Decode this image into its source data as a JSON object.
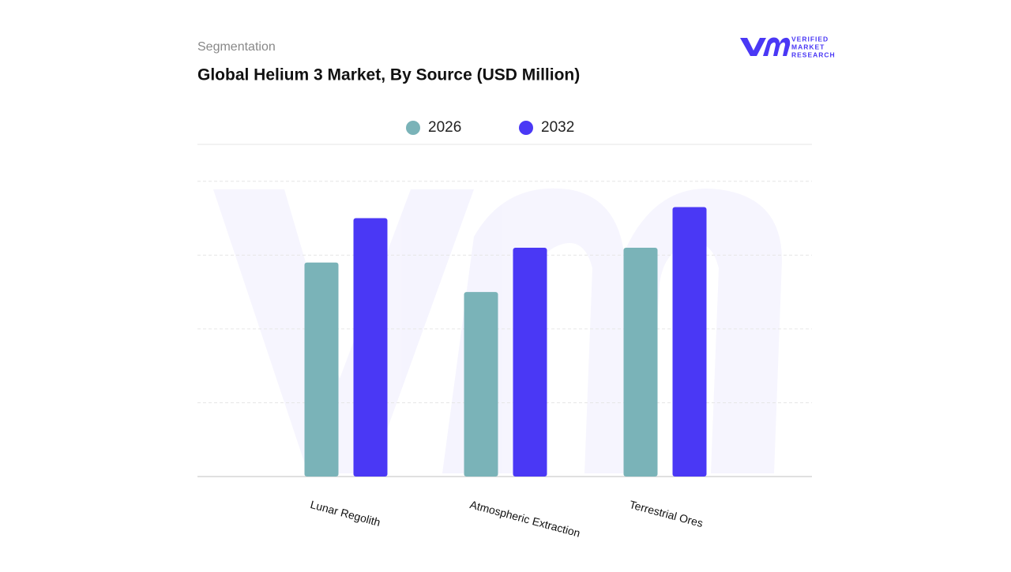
{
  "header": {
    "subtitle": "Segmentation",
    "logo": [
      "VERIFIED",
      "MARKET",
      "RESEARCH"
    ]
  },
  "chart_data": {
    "type": "bar",
    "title": "Global Helium 3 Market, By Source (USD Million)",
    "categories": [
      "Lunar Regolith",
      "Atmospheric Extraction",
      "Terrestrial Ores"
    ],
    "series": [
      {
        "name": "2026",
        "color": "#7ab3b8",
        "values": [
          2.9,
          2.5,
          3.1
        ]
      },
      {
        "name": "2032",
        "color": "#4a38f5",
        "values": [
          3.5,
          3.1,
          3.65
        ]
      }
    ],
    "ylim": [
      0,
      4.5
    ],
    "yticks": [
      1,
      2,
      3,
      4,
      4.5
    ],
    "grid": true
  }
}
